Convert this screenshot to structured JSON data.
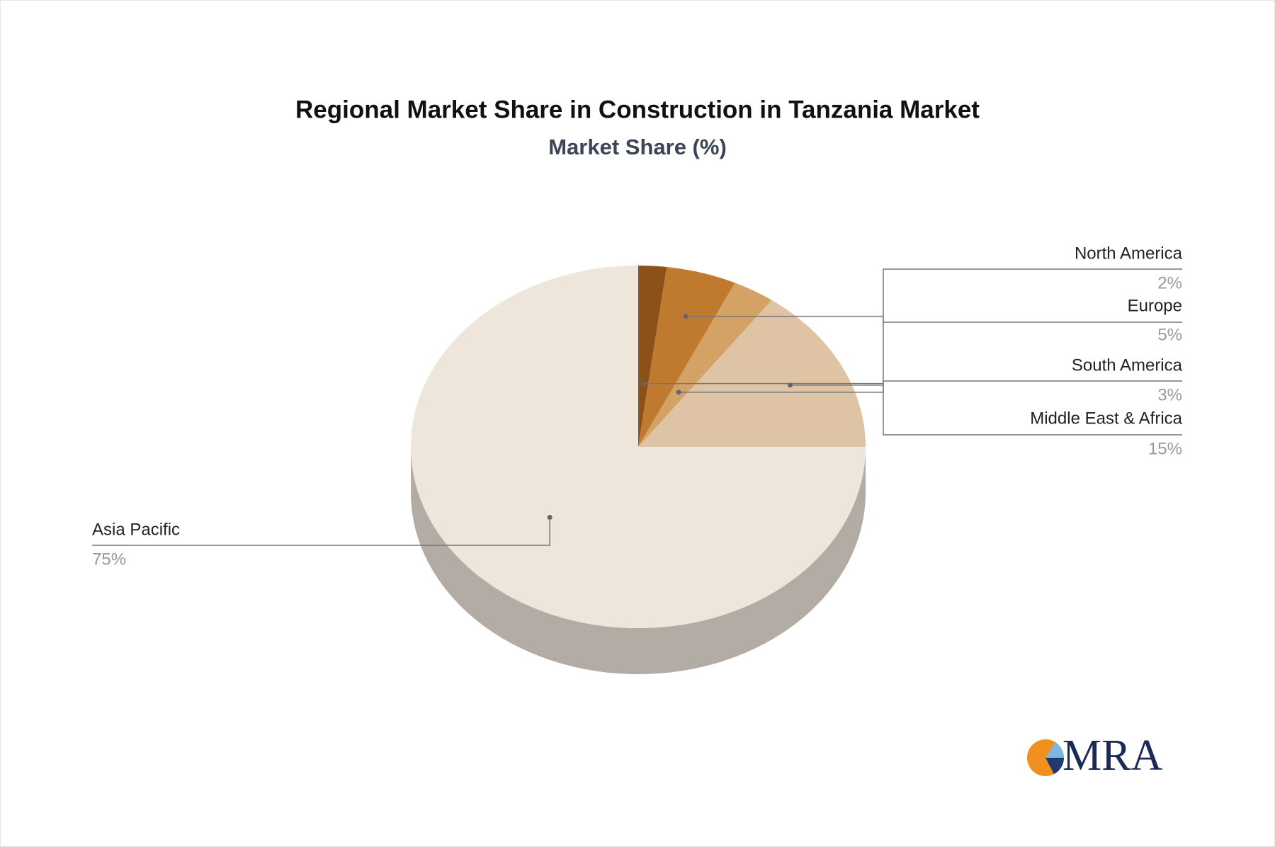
{
  "chart_data": {
    "type": "pie",
    "title": "Regional Market Share in Construction in Tanzania Market",
    "subtitle": "Market Share (%)",
    "categories": [
      "North America",
      "Europe",
      "South America",
      "Middle East & Africa",
      "Asia Pacific"
    ],
    "values": [
      2,
      5,
      3,
      15,
      75
    ],
    "value_labels": [
      "2%",
      "5%",
      "3%",
      "15%",
      "75%"
    ],
    "colors": [
      "#8b5119",
      "#c07a30",
      "#d4a265",
      "#dec4a4",
      "#eee5db"
    ]
  },
  "logo": "MRA"
}
